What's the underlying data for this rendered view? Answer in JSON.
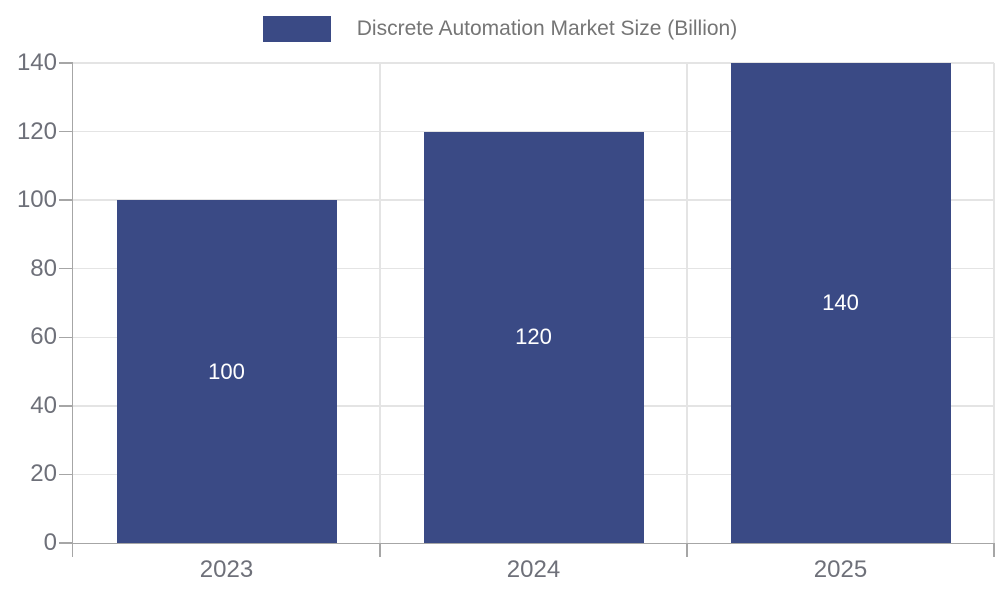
{
  "legend": {
    "label": "Discrete Automation Market Size (Billion)",
    "swatch_color": "#3A4A85"
  },
  "chart_data": {
    "type": "bar",
    "title": "Discrete Automation Market Size (Billion)",
    "categories": [
      "2023",
      "2024",
      "2025"
    ],
    "values": [
      100,
      120,
      140
    ],
    "data_labels": [
      "100",
      "120",
      "140"
    ],
    "xlabel": "",
    "ylabel": "",
    "ylim": [
      0,
      140
    ],
    "yticks": [
      0,
      20,
      40,
      60,
      80,
      100,
      120,
      140
    ],
    "grid": true,
    "legend_position": "top-center",
    "bar_color": "#3A4A85",
    "data_label_color": "#ffffff",
    "axis_label_color": "#6E7079",
    "axis_line_color": "#A6A6A6",
    "grid_color": "#E4E4E4"
  }
}
